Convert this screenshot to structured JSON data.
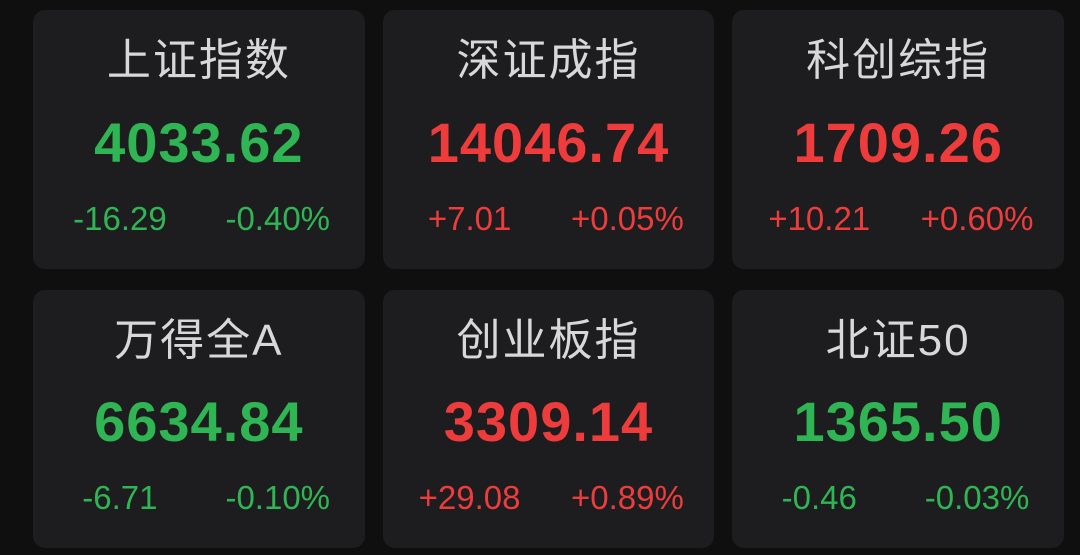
{
  "colors": {
    "up": "#ee3c3c",
    "down": "#2fb553",
    "title": "#d8d8d8",
    "card-bg": "#1d1d1f",
    "page-bg": "#0f0f0f"
  },
  "indices": [
    {
      "name": "上证指数",
      "value": "4033.62",
      "change": "-16.29",
      "change_pct": "-0.40%",
      "direction": "down"
    },
    {
      "name": "深证成指",
      "value": "14046.74",
      "change": "+7.01",
      "change_pct": "+0.05%",
      "direction": "up"
    },
    {
      "name": "科创综指",
      "value": "1709.26",
      "change": "+10.21",
      "change_pct": "+0.60%",
      "direction": "up"
    },
    {
      "name": "万得全A",
      "value": "6634.84",
      "change": "-6.71",
      "change_pct": "-0.10%",
      "direction": "down"
    },
    {
      "name": "创业板指",
      "value": "3309.14",
      "change": "+29.08",
      "change_pct": "+0.89%",
      "direction": "up"
    },
    {
      "name": "北证50",
      "value": "1365.50",
      "change": "-0.46",
      "change_pct": "-0.03%",
      "direction": "down"
    }
  ]
}
